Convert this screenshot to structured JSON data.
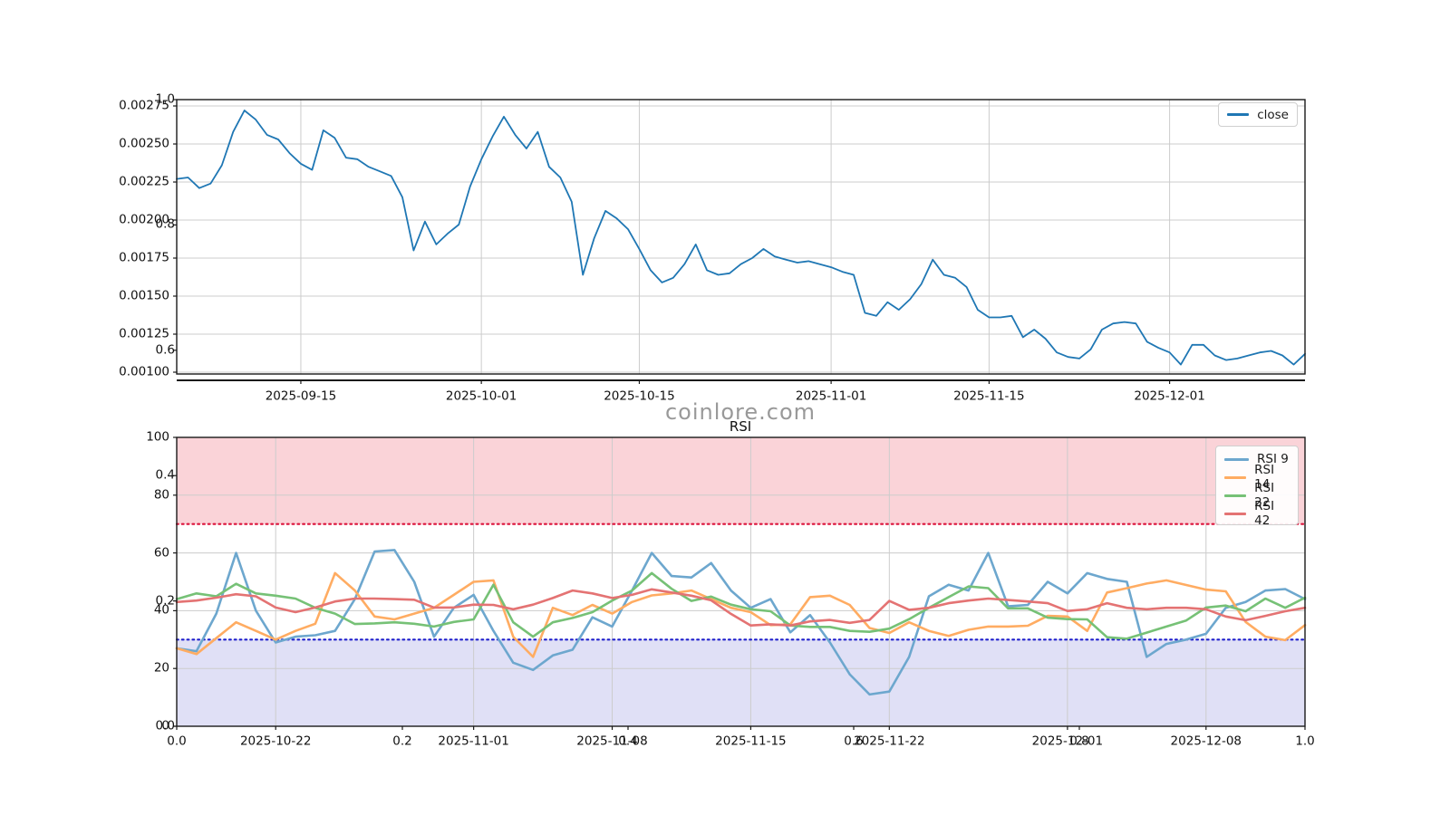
{
  "watermark": "coinlore.com",
  "colors": {
    "close": "#1f77b4",
    "rsi9": "#6da7ce",
    "rsi14": "#ffac62",
    "rsi22": "#76c176",
    "rsi42": "#e47373",
    "grid": "#cccccc",
    "spine": "#1a1a1a",
    "overbought_band": "#fad3d8",
    "oversold_band": "#e0e0f6",
    "overbought_line": "#dc143c",
    "oversold_line": "#2020cc",
    "watermark_color": "#999999"
  },
  "overlay_axis": {
    "x_tick_labels": [
      "0.0",
      "0.2",
      "0.4",
      "0.6",
      "0.8",
      "1.0"
    ],
    "y_tick_labels": [
      "1.0",
      "0.8",
      "0.6",
      "0.4",
      "0.2",
      "0.0"
    ]
  },
  "chart_data": [
    {
      "type": "line",
      "title": "",
      "x_start": "2025-09-04",
      "x_end": "2025-12-13",
      "days_span": 100,
      "x_ticks": [
        {
          "label": "2025-09-15",
          "day": 11
        },
        {
          "label": "2025-10-01",
          "day": 27
        },
        {
          "label": "2025-10-15",
          "day": 41
        },
        {
          "label": "2025-11-01",
          "day": 58
        },
        {
          "label": "2025-11-15",
          "day": 72
        },
        {
          "label": "2025-12-01",
          "day": 88
        }
      ],
      "y_ticks": [
        {
          "v": 0.001,
          "label": "0.00100"
        },
        {
          "v": 0.00125,
          "label": "0.00125"
        },
        {
          "v": 0.0015,
          "label": "0.00150"
        },
        {
          "v": 0.00175,
          "label": "0.00175"
        },
        {
          "v": 0.002,
          "label": "0.00200"
        },
        {
          "v": 0.00225,
          "label": "0.00225"
        },
        {
          "v": 0.0025,
          "label": "0.00250"
        },
        {
          "v": 0.00275,
          "label": "0.00275"
        }
      ],
      "ylim": [
        0.0009881,
        0.0027917
      ],
      "grid": true,
      "legend_position": "upper right",
      "series": [
        {
          "name": "close",
          "color_key": "close",
          "values": [
            0.00227,
            0.00228,
            0.00221,
            0.00224,
            0.00236,
            0.00258,
            0.00272,
            0.00266,
            0.00256,
            0.00253,
            0.00244,
            0.00237,
            0.00233,
            0.00259,
            0.00254,
            0.00241,
            0.0024,
            0.00235,
            0.00232,
            0.00229,
            0.00215,
            0.0018,
            0.00199,
            0.00184,
            0.00191,
            0.00197,
            0.00222,
            0.0024,
            0.00255,
            0.00268,
            0.00256,
            0.00247,
            0.00258,
            0.00235,
            0.00228,
            0.00212,
            0.00164,
            0.00188,
            0.00206,
            0.00201,
            0.00194,
            0.00181,
            0.00167,
            0.00159,
            0.00162,
            0.00171,
            0.00184,
            0.00167,
            0.00164,
            0.00165,
            0.00171,
            0.00175,
            0.00181,
            0.00176,
            0.00174,
            0.00172,
            0.00173,
            0.00171,
            0.00169,
            0.00166,
            0.00164,
            0.00139,
            0.00137,
            0.00146,
            0.00141,
            0.00148,
            0.00158,
            0.00174,
            0.00164,
            0.00162,
            0.00156,
            0.00141,
            0.00136,
            0.00136,
            0.00137,
            0.00123,
            0.00128,
            0.00122,
            0.00113,
            0.0011,
            0.00109,
            0.00115,
            0.00128,
            0.00132,
            0.00133,
            0.00132,
            0.0012,
            0.00116,
            0.00113,
            0.00105,
            0.00118,
            0.00118,
            0.00111,
            0.00108,
            0.00109,
            0.00111,
            0.00113,
            0.00114,
            0.00111,
            0.00105,
            0.00112
          ]
        }
      ]
    },
    {
      "type": "line",
      "title": "RSI",
      "x_start": "2025-10-17",
      "x_end": "2025-12-13",
      "days_span": 57,
      "x_ticks": [
        {
          "label": "2025-10-22",
          "day": 5
        },
        {
          "label": "2025-11-01",
          "day": 15
        },
        {
          "label": "2025-11-08",
          "day": 22
        },
        {
          "label": "2025-11-15",
          "day": 29
        },
        {
          "label": "2025-11-22",
          "day": 36
        },
        {
          "label": "2025-12-01",
          "day": 45
        },
        {
          "label": "2025-12-08",
          "day": 52
        }
      ],
      "y_ticks": [
        {
          "v": 0,
          "label": "0"
        },
        {
          "v": 20,
          "label": "20"
        },
        {
          "v": 40,
          "label": "40"
        },
        {
          "v": 60,
          "label": "60"
        },
        {
          "v": 80,
          "label": "80"
        },
        {
          "v": 100,
          "label": "100"
        }
      ],
      "ylim": [
        0,
        100
      ],
      "overbought_level": 70,
      "oversold_level": 30,
      "grid": true,
      "legend_position": "upper right",
      "series": [
        {
          "name": "RSI 9",
          "color_key": "rsi9",
          "values": [
            27,
            26,
            39,
            60,
            40,
            29,
            31,
            31.5,
            33,
            44,
            60.5,
            61,
            50,
            31,
            41,
            45.5,
            33,
            22,
            19.5,
            24.5,
            26.5,
            37.7,
            34.5,
            47,
            60,
            52,
            51.5,
            56.5,
            47,
            41,
            44,
            32.5,
            38.5,
            29,
            18,
            11,
            12,
            24,
            45,
            49,
            47,
            60,
            41.5,
            42,
            50,
            46,
            53,
            51,
            50,
            24,
            28.5,
            30,
            32,
            41,
            43,
            47,
            47.5,
            44
          ]
        },
        {
          "name": "RSI 14",
          "color_key": "rsi14",
          "values": [
            27,
            25,
            30.5,
            36,
            33,
            30,
            33,
            35.5,
            53,
            47,
            38,
            37,
            39,
            41,
            45.5,
            50,
            50.5,
            31,
            24,
            41,
            38.5,
            42,
            39,
            43,
            45.3,
            46,
            47,
            44,
            41,
            39.5,
            35,
            35.3,
            44.7,
            45.2,
            42,
            34,
            32.3,
            36,
            33,
            31.3,
            33.4,
            34.5,
            34.5,
            34.8,
            38.2,
            38,
            33,
            46.3,
            47.8,
            49.4,
            50.5,
            48.9,
            47.3,
            46.7,
            36.1,
            31,
            29.8,
            35
          ]
        },
        {
          "name": "RSI 22",
          "color_key": "rsi22",
          "values": [
            44,
            46,
            45,
            49.3,
            46,
            45.2,
            44.2,
            41,
            39,
            35.4,
            35.6,
            36,
            35.5,
            34.5,
            36.1,
            37,
            49,
            36,
            31,
            36,
            37.5,
            39.5,
            43.5,
            47,
            53,
            47.6,
            43.4,
            44.9,
            42.1,
            40.5,
            39.8,
            34.9,
            34.4,
            34.4,
            33,
            32.7,
            33.8,
            37.1,
            41,
            44.7,
            48.4,
            47.8,
            40.8,
            40.8,
            37.6,
            37.1,
            37,
            30.8,
            30.3,
            32.4,
            34.5,
            36.6,
            41.1,
            41.8,
            39.8,
            44.2,
            41,
            44.5
          ]
        },
        {
          "name": "RSI 42",
          "color_key": "rsi42",
          "values": [
            43,
            43.5,
            44.5,
            45.7,
            45,
            41.1,
            39.5,
            41.1,
            43.2,
            44.2,
            44.2,
            44,
            43.8,
            41.1,
            41.1,
            42.1,
            42,
            40.5,
            42.1,
            44.4,
            47,
            46,
            44.4,
            45.5,
            47.4,
            46.3,
            45.2,
            43.6,
            38.9,
            34.9,
            35.3,
            34.9,
            36.3,
            36.8,
            35.8,
            36.8,
            43.4,
            40.3,
            41,
            42.6,
            43.5,
            44.2,
            43.7,
            43.2,
            42.6,
            39.9,
            40.5,
            42.6,
            41,
            40.5,
            41,
            41,
            40.5,
            38,
            36.7,
            38.2,
            39.8,
            41
          ]
        }
      ]
    }
  ]
}
